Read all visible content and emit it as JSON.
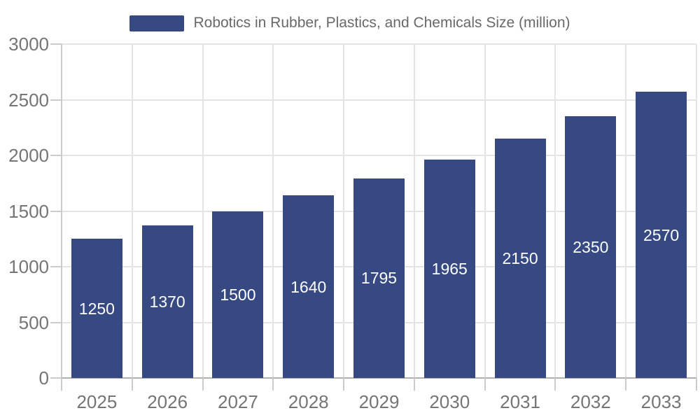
{
  "legend": {
    "label": "Robotics in Rubber, Plastics, and Chemicals Size (million)"
  },
  "chart_data": {
    "type": "bar",
    "title": "Robotics in Rubber, Plastics, and Chemicals Size (million)",
    "categories": [
      "2025",
      "2026",
      "2027",
      "2028",
      "2029",
      "2030",
      "2031",
      "2032",
      "2033"
    ],
    "values": [
      1250,
      1370,
      1500,
      1640,
      1795,
      1965,
      2150,
      2350,
      2570
    ],
    "series": [
      {
        "name": "Robotics in Rubber, Plastics, and Chemicals Size (million)",
        "values": [
          1250,
          1370,
          1500,
          1640,
          1795,
          1965,
          2150,
          2350,
          2570
        ]
      }
    ],
    "value_labels_shown": true,
    "xlabel": "",
    "ylabel": "",
    "ylim": [
      0,
      3000
    ],
    "y_ticks": [
      0,
      500,
      1000,
      1500,
      2000,
      2500,
      3000
    ],
    "grid": true,
    "grid_vertical": true,
    "legend_position": "top",
    "colors": {
      "bar": "#364983",
      "value_label": "#ffffff",
      "axis_tick_label": "#757575",
      "legend_text": "#696969",
      "gridline": "#e4e4e4",
      "x_axis_line": "#b0b0b0",
      "y_axis_line": "#cccccc",
      "tick_mark": "#cccccc",
      "background": "#ffffff"
    }
  }
}
